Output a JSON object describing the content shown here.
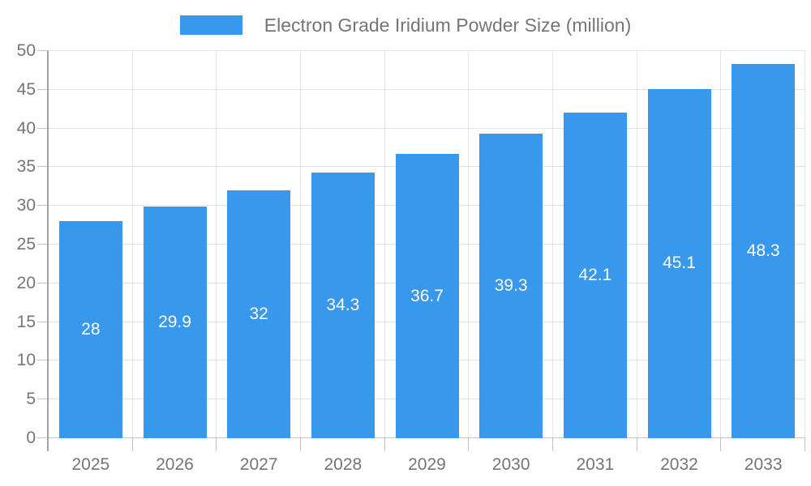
{
  "chart_data": {
    "type": "bar",
    "title": "Electron Grade Iridium Powder Size (million)",
    "categories": [
      "2025",
      "2026",
      "2027",
      "2028",
      "2029",
      "2030",
      "2031",
      "2032",
      "2033"
    ],
    "values": [
      28,
      29.9,
      32,
      34.3,
      36.7,
      39.3,
      42.1,
      45.1,
      48.3
    ],
    "value_labels": [
      "28",
      "29.9",
      "32",
      "34.3",
      "36.7",
      "39.3",
      "42.1",
      "45.1",
      "48.3"
    ],
    "xlabel": "",
    "ylabel": "",
    "ylim": [
      0,
      50
    ],
    "ytick_step": 5,
    "y_tick_labels": [
      "0",
      "5",
      "10",
      "15",
      "20",
      "25",
      "30",
      "35",
      "40",
      "45",
      "50"
    ],
    "grid": "on",
    "legend_position": "top",
    "colors": {
      "bar": "#3898ec",
      "value_label": "#ffffff",
      "axis_text": "#757575",
      "legend_text": "#757575",
      "gridline": "#e4e4e4",
      "tick": "#c2c2c2",
      "axis_line": "#a3a3a3",
      "background": "#ffffff"
    }
  }
}
